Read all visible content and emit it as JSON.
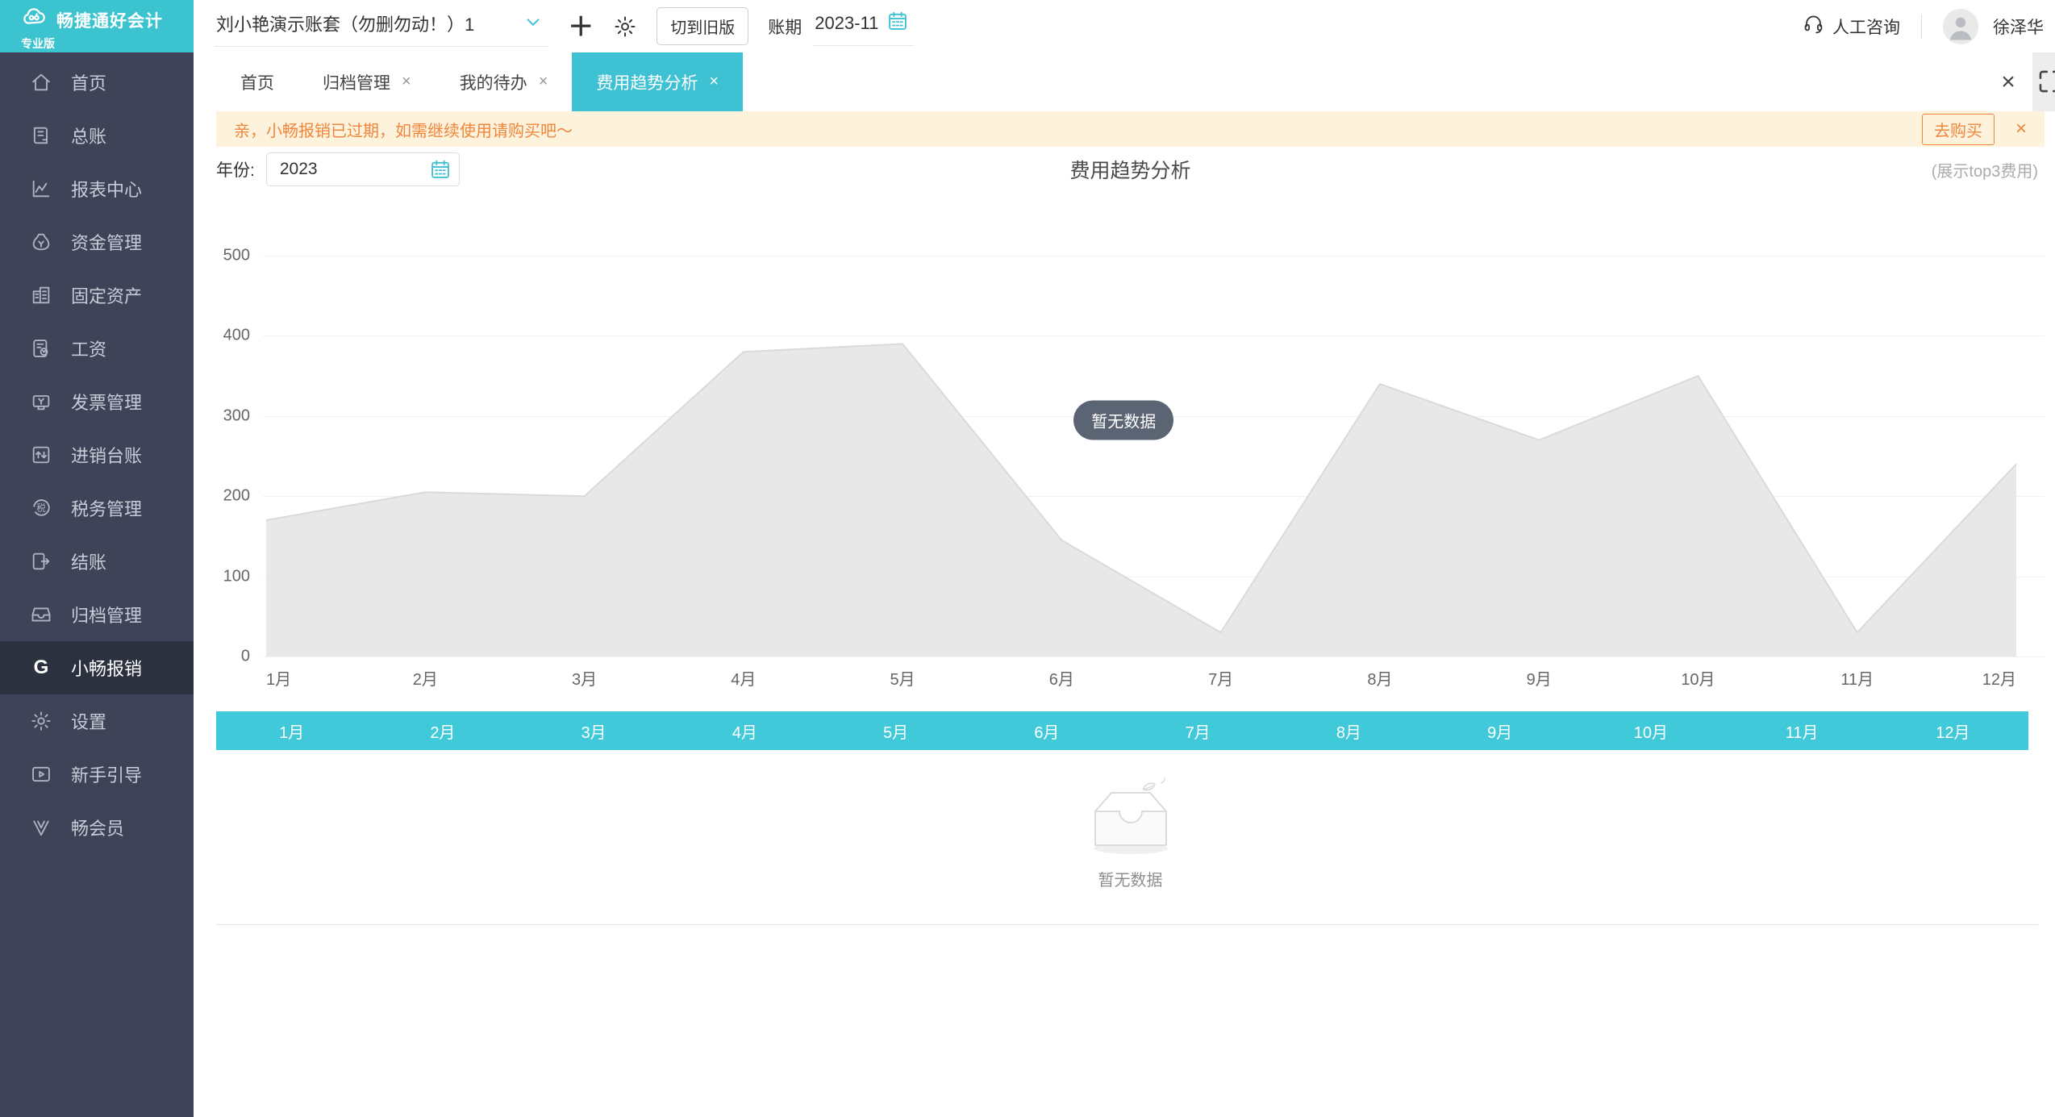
{
  "brand": {
    "name": "畅捷通好会计",
    "edition": "专业版"
  },
  "topbar": {
    "account_name": "刘小艳演示账套（勿删勿动！）1",
    "switch_old_label": "切到旧版",
    "period_label": "账期",
    "period_value": "2023-11",
    "consult_label": "人工咨询",
    "user_name": "徐泽华"
  },
  "tabs": [
    {
      "label": "首页"
    },
    {
      "label": "归档管理"
    },
    {
      "label": "我的待办"
    },
    {
      "label": "费用趋势分析"
    }
  ],
  "banner": {
    "text": "亲，小畅报销已过期，如需继续使用请购买吧～",
    "buy_label": "去购买"
  },
  "filter": {
    "label": "年份:",
    "value": "2023"
  },
  "chart_data": {
    "type": "area",
    "title": "费用趋势分析",
    "note": "(展示top3费用)",
    "categories": [
      "1月",
      "2月",
      "3月",
      "4月",
      "5月",
      "6月",
      "7月",
      "8月",
      "9月",
      "10月",
      "11月",
      "12月"
    ],
    "values": [
      170,
      205,
      200,
      380,
      390,
      145,
      30,
      340,
      270,
      350,
      30,
      240
    ],
    "ylim": [
      0,
      500
    ],
    "yticks": [
      0,
      100,
      200,
      300,
      400,
      500
    ],
    "xlabel": "",
    "ylabel": "",
    "grid": true,
    "legend": false,
    "empty_badge": "暂无数据",
    "area_fill": "#e8e8e8",
    "area_line": "#dadada"
  },
  "month_bar": [
    "1月",
    "2月",
    "3月",
    "4月",
    "5月",
    "6月",
    "7月",
    "8月",
    "9月",
    "10月",
    "11月",
    "12月"
  ],
  "empty_state": {
    "text": "暂无数据"
  },
  "sidebar": {
    "items": [
      {
        "label": "首页"
      },
      {
        "label": "总账"
      },
      {
        "label": "报表中心"
      },
      {
        "label": "资金管理"
      },
      {
        "label": "固定资产"
      },
      {
        "label": "工资"
      },
      {
        "label": "发票管理"
      },
      {
        "label": "进销台账"
      },
      {
        "label": "税务管理"
      },
      {
        "label": "结账"
      },
      {
        "label": "归档管理"
      },
      {
        "label": "小畅报销",
        "active": true
      },
      {
        "label": "设置"
      },
      {
        "label": "新手引导"
      },
      {
        "label": "畅会员"
      }
    ]
  },
  "icons": {
    "close": "×",
    "plus": "＋",
    "tax_glyph": "税",
    "expense_glyph": "G"
  },
  "colors": {
    "accent_teal": "#3ec1d3",
    "monthbar_teal": "#3fc9d9",
    "logo_teal": "#3bc4cf",
    "sidebar_bg": "#3e4357",
    "sidebar_active_bg": "#2c3140",
    "banner_bg": "#fdf3dd",
    "banner_orange": "#f0853c",
    "badge_bg": "#5b6472",
    "grid_line": "#eef1f6",
    "tick_text": "#666666",
    "area_fill": "#e8e8e8"
  }
}
